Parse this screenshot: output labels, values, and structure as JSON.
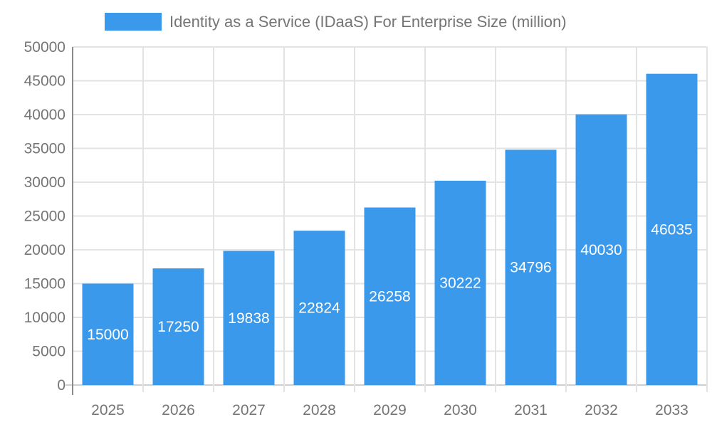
{
  "legend": {
    "label": "Identity as a Service (IDaaS) For Enterprise Size (million)"
  },
  "chart_data": {
    "type": "bar",
    "title": "Identity as a Service (IDaaS) For Enterprise Size (million)",
    "series_name": "Identity as a Service (IDaaS) For Enterprise Size (million)",
    "categories": [
      "2025",
      "2026",
      "2027",
      "2028",
      "2029",
      "2030",
      "2031",
      "2032",
      "2033"
    ],
    "values": [
      15000,
      17250,
      19838,
      22824,
      26258,
      30222,
      34796,
      40030,
      46035
    ],
    "bar_value_labels": [
      "15000",
      "17250",
      "19838",
      "22824",
      "26258",
      "30222",
      "34796",
      "40030",
      "46035"
    ],
    "xlabel": "",
    "ylabel": "",
    "ylim": [
      0,
      50000
    ],
    "y_tick_step": 5000,
    "y_ticks": [
      0,
      5000,
      10000,
      15000,
      20000,
      25000,
      30000,
      35000,
      40000,
      45000,
      50000
    ],
    "grid": true,
    "legend_position": "top",
    "bar_labels_inside": true,
    "colors": {
      "bar": "#3B99EC",
      "gridline": "#E3E3E3",
      "baseline": "#CFCFCF",
      "axis_line": "#8A8A8A",
      "tick_text": "#757575",
      "title_text": "#757575",
      "bar_label_text": "#FFFFFF",
      "background": "#FFFFFF"
    }
  }
}
